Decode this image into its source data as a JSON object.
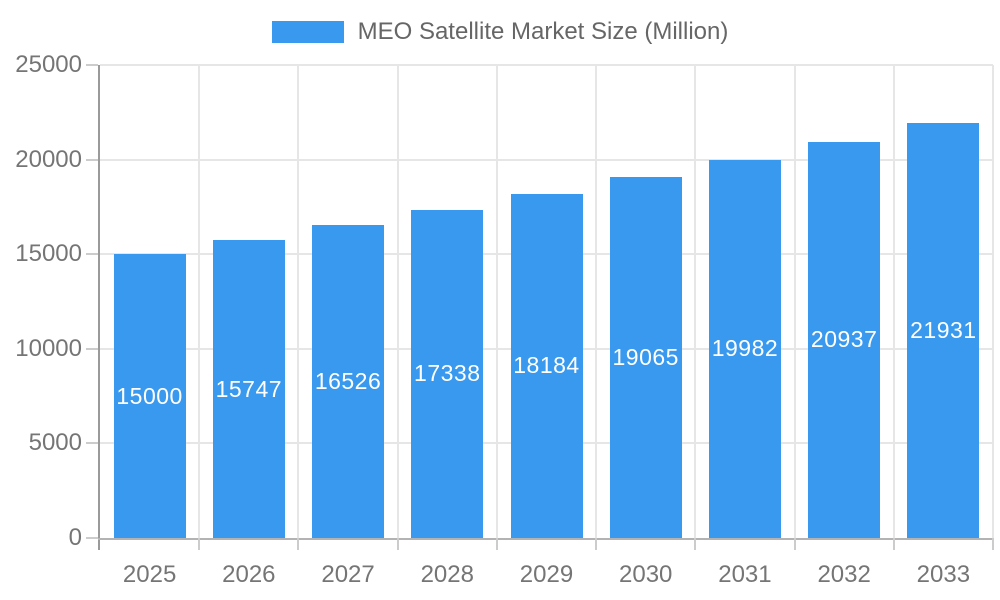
{
  "legend": {
    "label": "MEO Satellite Market Size (Million)"
  },
  "chart_data": {
    "type": "bar",
    "title": "MEO Satellite Market Size (Million)",
    "categories": [
      "2025",
      "2026",
      "2027",
      "2028",
      "2029",
      "2030",
      "2031",
      "2032",
      "2033"
    ],
    "values": [
      15000,
      15747,
      16526,
      17338,
      18184,
      19065,
      19982,
      20937,
      21931
    ],
    "series": [
      {
        "name": "MEO Satellite Market Size (Million)",
        "values": [
          15000,
          15747,
          16526,
          17338,
          18184,
          19065,
          19982,
          20937,
          21931
        ]
      }
    ],
    "xlabel": "",
    "ylabel": "",
    "ylim": [
      0,
      25000
    ],
    "yticks": [
      0,
      5000,
      10000,
      15000,
      20000,
      25000
    ],
    "grid": true,
    "legend_position": "top-center",
    "value_label_position": "inside-center",
    "colors": {
      "bar": "#3999EE",
      "value_label": "#FFFFFF",
      "grid": "#E6E6E6",
      "y_axis_line": "#9A9A9A",
      "x_axis_line": "#B3B3B3",
      "tick_mark": "#CCCCCC",
      "tick_label": "#757575",
      "legend_text": "#666666",
      "background": "#FFFFFF"
    }
  }
}
